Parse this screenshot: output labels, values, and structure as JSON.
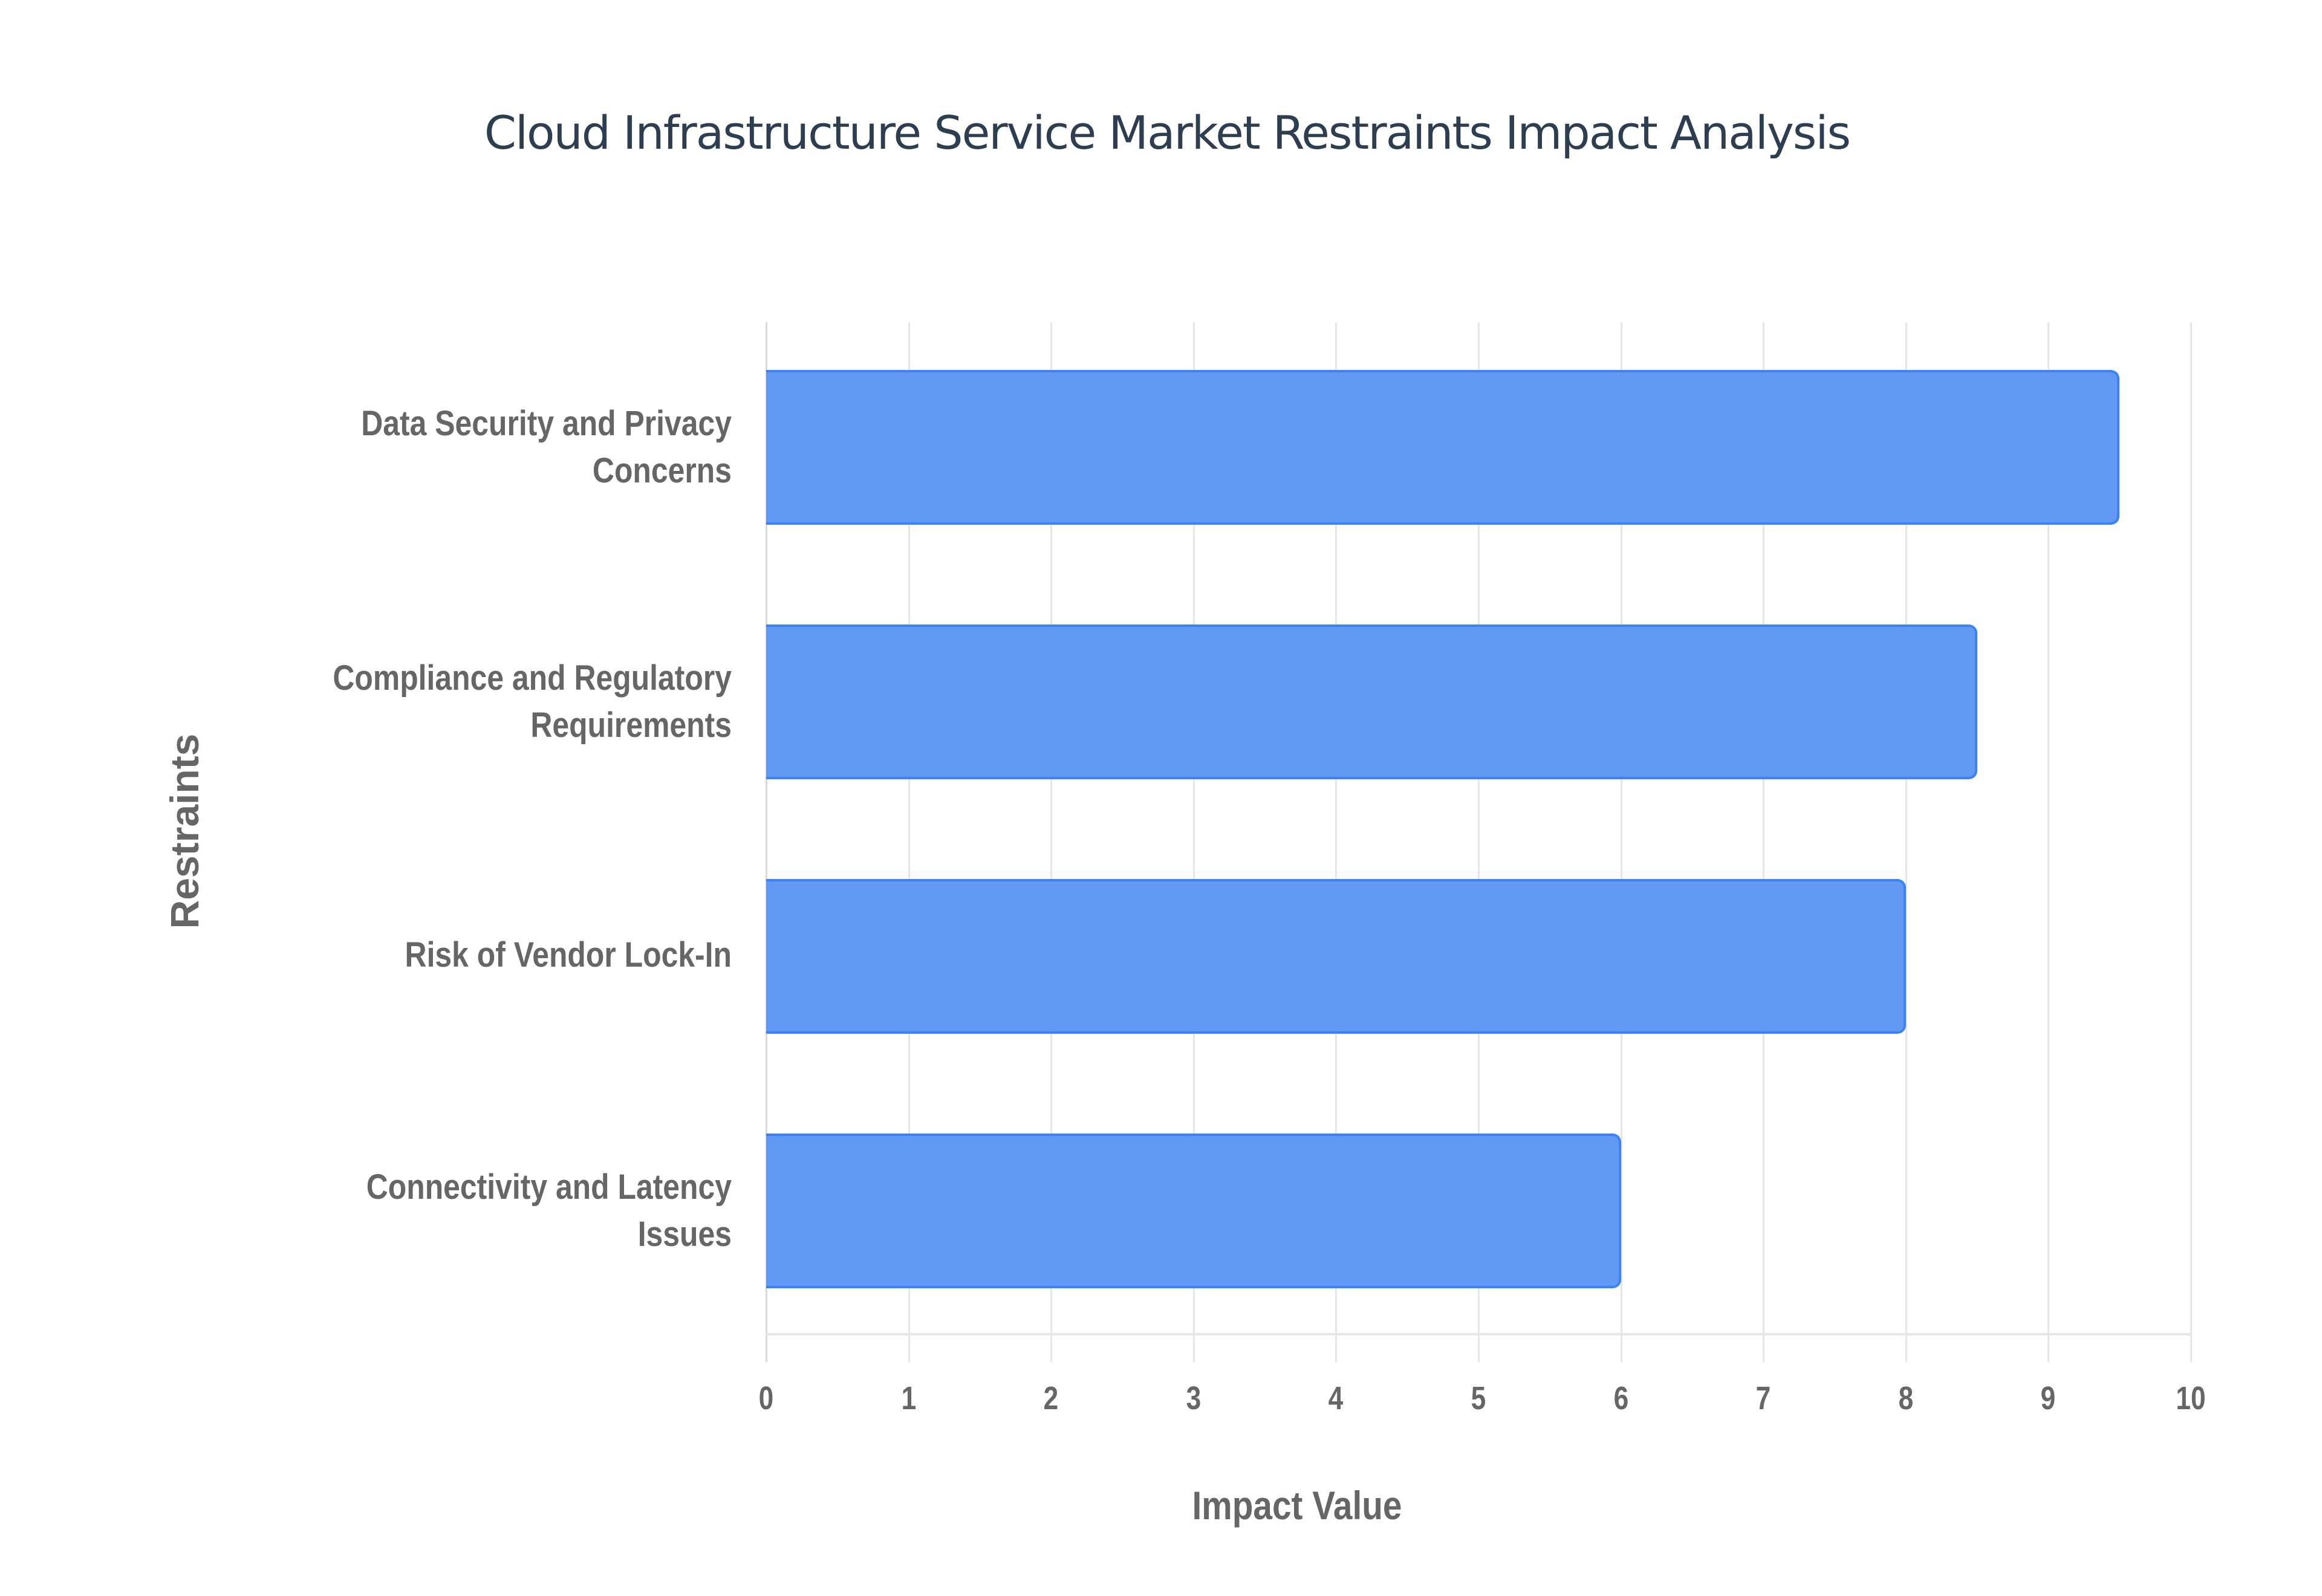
{
  "chart_data": {
    "type": "bar",
    "orientation": "horizontal",
    "title": "Cloud Infrastructure Service Market Restraints Impact Analysis",
    "xlabel": "Impact Value",
    "ylabel": "Restraints",
    "categories": [
      "Data Security and Privacy Concerns",
      "Compliance and Regulatory Requirements",
      "Risk of Vendor Lock-In",
      "Connectivity and Latency Issues"
    ],
    "values": [
      9.5,
      8.5,
      8,
      6
    ],
    "xlim": [
      0,
      10
    ],
    "x_ticks": [
      "0",
      "1",
      "2",
      "3",
      "4",
      "5",
      "6",
      "7",
      "8",
      "9",
      "10"
    ],
    "grid": "vertical",
    "legend": "none",
    "bar_color": "#6199f5",
    "bar_border_color": "#3b82f6"
  },
  "labels": {
    "categories": [
      {
        "line1": "Data Security and Privacy",
        "line2": "Concerns"
      },
      {
        "line1": "Compliance and Regulatory",
        "line2": "Requirements"
      },
      {
        "line1": "Risk of Vendor Lock-In",
        "line2": ""
      },
      {
        "line1": "Connectivity and Latency",
        "line2": "Issues"
      }
    ]
  }
}
